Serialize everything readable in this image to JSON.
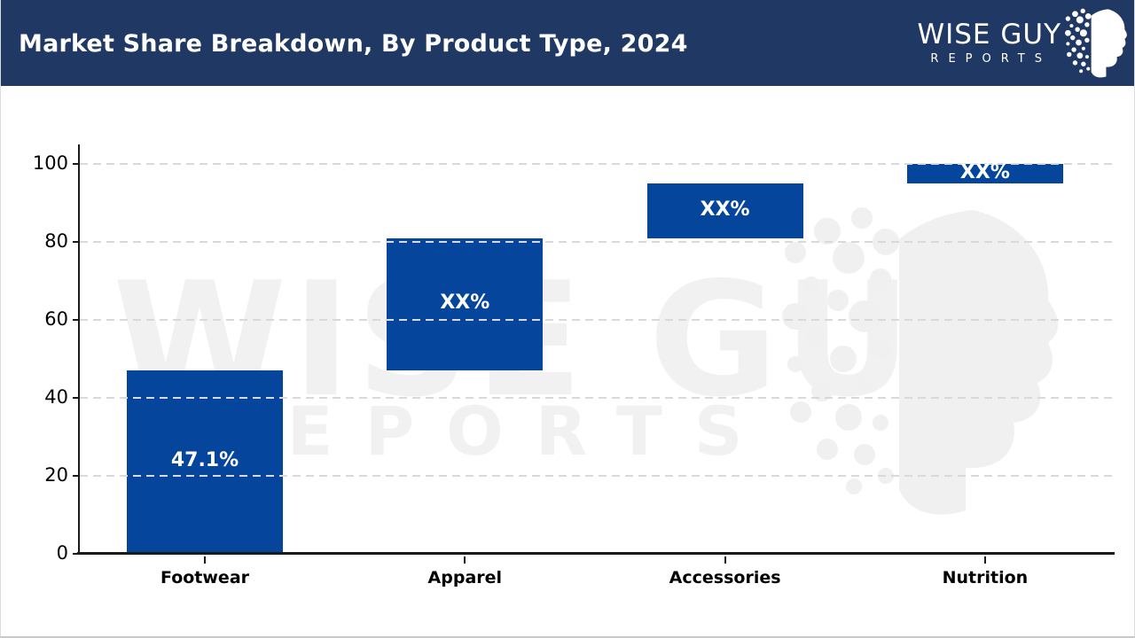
{
  "header": {
    "title": "Market Share Breakdown, By Product Type, 2024",
    "logo": {
      "name": "WISE GUY",
      "subtitle": "REPORTS"
    }
  },
  "watermark": {
    "name": "WISE GUY",
    "subtitle": "REPORTS"
  },
  "chart_data": {
    "type": "bar",
    "subtype": "waterfall",
    "title": "Market Share Breakdown, By Product Type, 2024",
    "categories": [
      "Footwear",
      "Apparel",
      "Accessories",
      "Nutrition"
    ],
    "segments": [
      {
        "category": "Footwear",
        "label": "47.1%",
        "start": 0,
        "end": 47.1
      },
      {
        "category": "Apparel",
        "label": "XX%",
        "start": 47.1,
        "end": 81
      },
      {
        "category": "Accessories",
        "label": "XX%",
        "start": 81,
        "end": 95
      },
      {
        "category": "Nutrition",
        "label": "XX%",
        "start": 95,
        "end": 100
      }
    ],
    "yticks": [
      0,
      20,
      40,
      60,
      80,
      100
    ],
    "ylim": [
      0,
      105
    ],
    "xlabel": "",
    "ylabel": "",
    "grid": {
      "axis": "y",
      "style": "dashed",
      "color": "#d9d9d9",
      "drawn_over_bars": true
    },
    "legend": null,
    "bar_color": "#05459b",
    "bar_label_color": "#ffffff",
    "axis_color": "#1a1a1a",
    "header_bg_color": "#1f3864",
    "watermark_color": "#f1f1f1"
  }
}
